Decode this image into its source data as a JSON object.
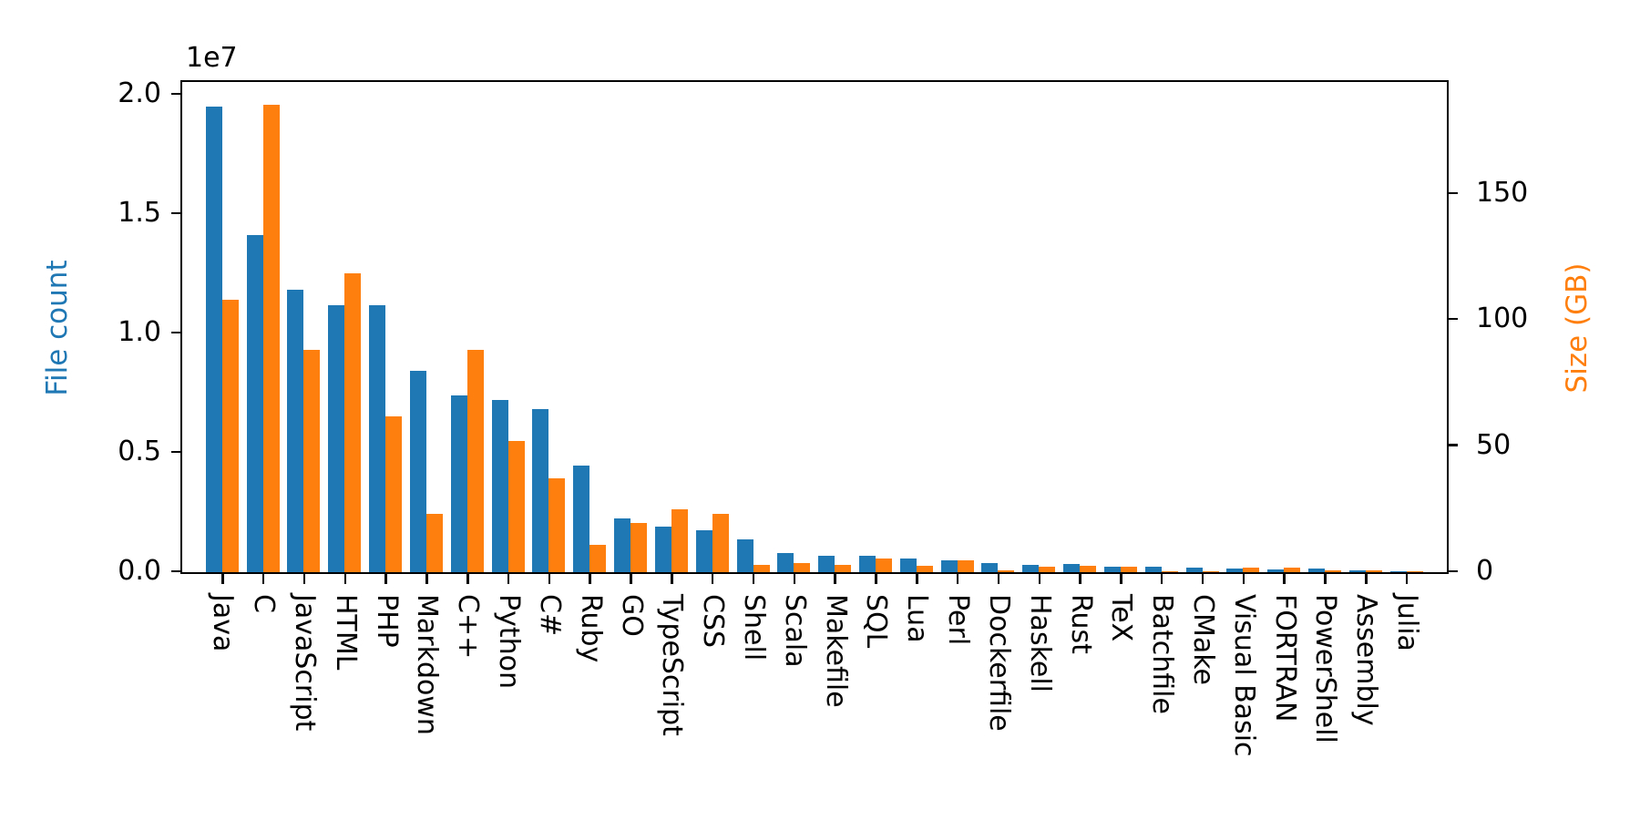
{
  "figure": {
    "background": "#ffffff",
    "axis_color": "#000000",
    "left_axis": {
      "label": "File count",
      "color": "#1f77b4",
      "offset_text": "1e7",
      "tick_labels": [
        "0.0",
        "0.5",
        "1.0",
        "1.5",
        "2.0"
      ],
      "tick_values": [
        0,
        5000000,
        10000000,
        15000000,
        20000000
      ]
    },
    "right_axis": {
      "label": "Size (GB)",
      "color": "#ff7f0e",
      "tick_labels": [
        "0",
        "50",
        "100",
        "150"
      ],
      "tick_values": [
        0,
        50,
        100,
        150
      ]
    }
  },
  "chart_data": {
    "type": "bar",
    "title": "",
    "xlabel": "",
    "ylabel_left": "File count",
    "ylabel_right": "Size (GB)",
    "grid": false,
    "legend": "none",
    "ylim_left": [
      0,
      20500000
    ],
    "ylim_right": [
      0,
      194
    ],
    "categories": [
      "Java",
      "C",
      "JavaScript",
      "HTML",
      "PHP",
      "Markdown",
      "C++",
      "Python",
      "C#",
      "Ruby",
      "GO",
      "TypeScript",
      "CSS",
      "Shell",
      "Scala",
      "Makefile",
      "SQL",
      "Lua",
      "Perl",
      "Dockerfile",
      "Haskell",
      "Rust",
      "TeX",
      "Batchfile",
      "CMake",
      "Visual Basic",
      "FORTRAN",
      "PowerShell",
      "Assembly",
      "Julia"
    ],
    "series": [
      {
        "name": "File count",
        "axis": "left",
        "color": "#1f77b4",
        "values": [
          19500000,
          14120000,
          11810000,
          11150000,
          11150000,
          8430000,
          7370000,
          7200000,
          6800000,
          4460000,
          2250000,
          1900000,
          1730000,
          1370000,
          800000,
          660000,
          670000,
          570000,
          470000,
          360000,
          300000,
          320000,
          230000,
          230000,
          160000,
          130000,
          110000,
          130000,
          60000,
          40000
        ]
      },
      {
        "name": "Size (GB)",
        "axis": "right",
        "color": "#ff7f0e",
        "values": [
          108,
          185,
          88,
          118.5,
          61.5,
          23,
          88,
          52,
          37,
          10.8,
          19.2,
          24.6,
          22.8,
          2.9,
          3.6,
          2.9,
          5.4,
          2.5,
          4.7,
          0.7,
          2.0,
          2.3,
          2.1,
          0.2,
          0.2,
          1.7,
          1.6,
          0.4,
          0.7,
          0.1
        ]
      }
    ]
  }
}
